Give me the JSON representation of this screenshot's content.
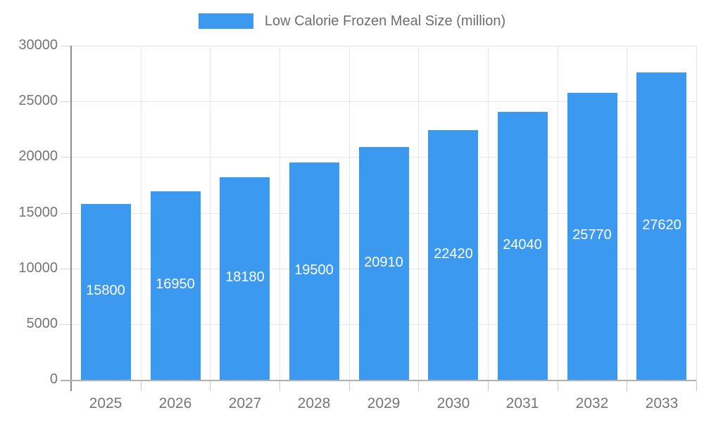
{
  "legend": {
    "label": "Low Calorie Frozen Meal Size (million)",
    "swatch_color": "#3b99f0"
  },
  "chart_data": {
    "type": "bar",
    "title": "Low Calorie Frozen Meal Size (million)",
    "categories": [
      "2025",
      "2026",
      "2027",
      "2028",
      "2029",
      "2030",
      "2031",
      "2032",
      "2033"
    ],
    "values": [
      15800,
      16950,
      18180,
      19500,
      20910,
      22420,
      24040,
      25770,
      27620
    ],
    "xlabel": "",
    "ylabel": "",
    "ylim": [
      0,
      30000
    ],
    "ytick_step": 5000,
    "ytick_labels": [
      "0",
      "5000",
      "10000",
      "15000",
      "20000",
      "25000",
      "30000"
    ],
    "grid": true,
    "legend_position": "top",
    "bar_color": "#3b99f0",
    "bar_label_color": "#ffffff",
    "axis_text_color": "#757575",
    "grid_color": "#e6e6e6"
  }
}
